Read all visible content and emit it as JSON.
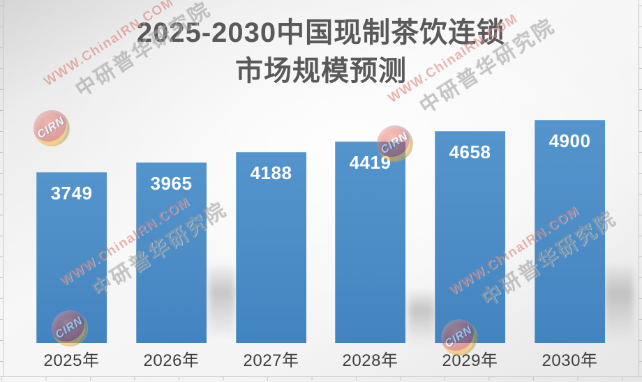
{
  "title": {
    "line1": "2025-2030中国现制茶饮连锁",
    "line2": "市场规模预测"
  },
  "chart_data": {
    "type": "bar",
    "title": "2025-2030中国现制茶饮连锁市场规模预测",
    "categories": [
      "2025年",
      "2026年",
      "2027年",
      "2028年",
      "2029年",
      "2030年"
    ],
    "values": [
      3749,
      3965,
      4188,
      4419,
      4658,
      4900
    ],
    "xlabel": "",
    "ylabel": "",
    "ylim": [
      0,
      4900
    ],
    "grid": false,
    "legend": false,
    "value_labels_shown": true
  },
  "watermark": {
    "logo_text": "CIRN",
    "url_text": "WWW.ChinaIRN.COM",
    "org_text": "中研普华研究院"
  },
  "colors": {
    "bar": "#4e8ec7",
    "value_label": "#ffffff",
    "title_text": "#595959",
    "axis_label_text": "#3f3f3f",
    "watermark_red": "#d97b72",
    "watermark_gray": "#9a9a9a"
  }
}
